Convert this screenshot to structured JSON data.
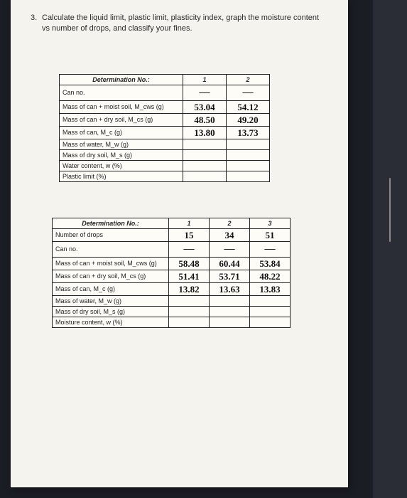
{
  "question": {
    "number": "3.",
    "text": "Calculate the liquid limit, plastic limit, plasticity index, graph the moisture content vs number of drops, and classify your fines."
  },
  "table1": {
    "header": "Determination No.:",
    "cols": [
      "1",
      "2"
    ],
    "rows": [
      {
        "label": "Can no.",
        "v": [
          "—",
          "—"
        ],
        "dash": true
      },
      {
        "label": "Mass of can + moist soil, M_cws (g)",
        "v": [
          "53.04",
          "54.12"
        ]
      },
      {
        "label": "Mass of can + dry soil, M_cs (g)",
        "v": [
          "48.50",
          "49.20"
        ]
      },
      {
        "label": "Mass of can, M_c (g)",
        "v": [
          "13.80",
          "13.73"
        ]
      },
      {
        "label": "Mass of water, M_w (g)",
        "v": [
          "",
          ""
        ]
      },
      {
        "label": "Mass of dry soil, M_s (g)",
        "v": [
          "",
          ""
        ]
      },
      {
        "label": "Water content, w (%)",
        "v": [
          "",
          ""
        ]
      },
      {
        "label": "Plastic limit (%)",
        "v": [
          "",
          ""
        ]
      }
    ]
  },
  "table2": {
    "header": "Determination No.:",
    "cols": [
      "1",
      "2",
      "3"
    ],
    "rows": [
      {
        "label": "Number of drops",
        "v": [
          "15",
          "34",
          "51"
        ]
      },
      {
        "label": "Can no.",
        "v": [
          "—",
          "—",
          "—"
        ],
        "dash": true
      },
      {
        "label": "Mass of can + moist soil, M_cws (g)",
        "v": [
          "58.48",
          "60.44",
          "53.84"
        ]
      },
      {
        "label": "Mass of can + dry soil, M_cs (g)",
        "v": [
          "51.41",
          "53.71",
          "48.22"
        ]
      },
      {
        "label": "Mass of can, M_c (g)",
        "v": [
          "13.82",
          "13.63",
          "13.83"
        ]
      },
      {
        "label": "Mass of water, M_w (g)",
        "v": [
          "",
          "",
          ""
        ]
      },
      {
        "label": "Mass of dry soil, M_s (g)",
        "v": [
          "",
          "",
          ""
        ]
      },
      {
        "label": "Moisture content, w (%)",
        "v": [
          "",
          "",
          ""
        ]
      }
    ]
  }
}
